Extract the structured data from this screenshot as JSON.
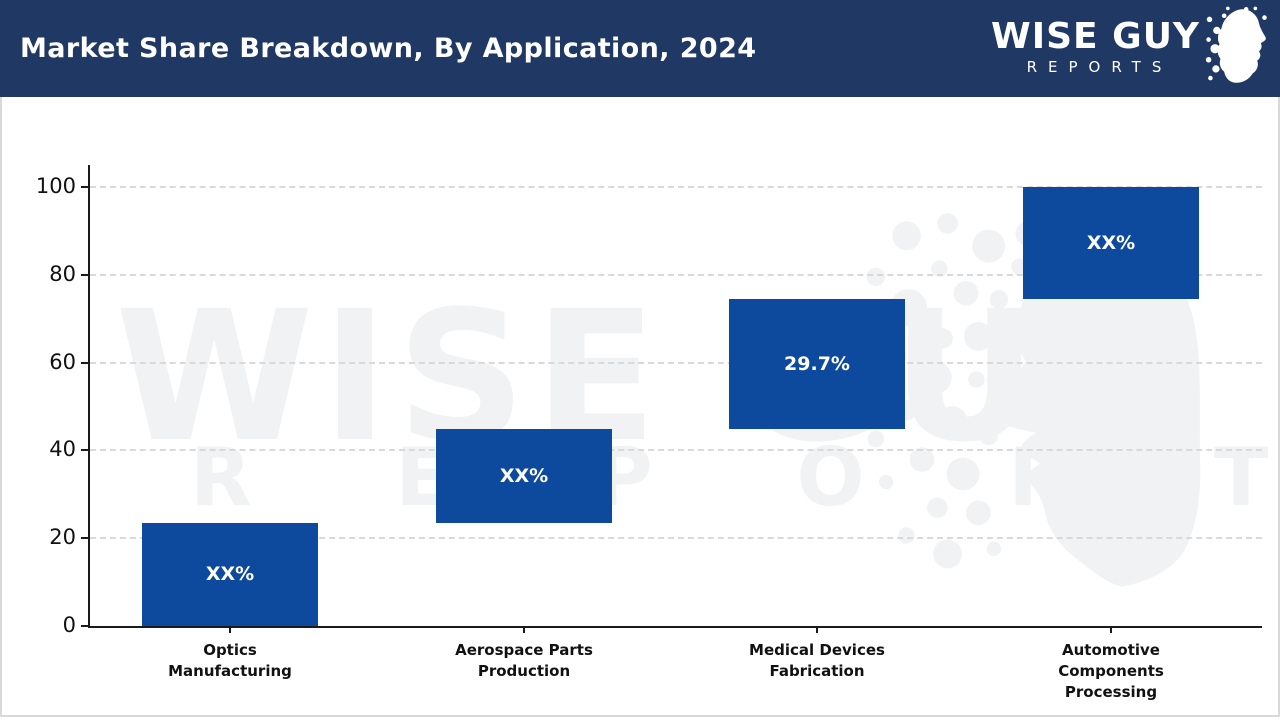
{
  "header": {
    "title": "Market Share Breakdown, By Application, 2024",
    "logo": {
      "primary": "WISE GUY",
      "secondary": "REPORTS"
    }
  },
  "watermark": {
    "primary": "WISE GUY",
    "secondary": "R E P O R T S"
  },
  "chart_data": {
    "type": "bar",
    "subtype": "waterfall",
    "title": "Market Share Breakdown, By Application, 2024",
    "categories": [
      [
        "Optics",
        "Manufacturing"
      ],
      [
        "Aerospace Parts",
        "Production"
      ],
      [
        "Medical Devices",
        "Fabrication"
      ],
      [
        "Automotive",
        "Components",
        "Processing"
      ]
    ],
    "values": [
      23.5,
      21.4,
      29.7,
      25.4
    ],
    "cumulative_ends": [
      23.5,
      44.9,
      74.6,
      100
    ],
    "bar_labels": [
      "XX%",
      "XX%",
      "29.7%",
      "XX%"
    ],
    "xlabel": "",
    "ylabel": "",
    "ylim": [
      0,
      100
    ],
    "yticks": [
      0,
      20,
      40,
      60,
      80,
      100
    ],
    "grid": "horizontal-dashed",
    "legend": "none",
    "bar_color": "#0d4a9e",
    "bar_label_color": "#ffffff"
  },
  "colors": {
    "header_bg": "#1f3864",
    "axis": "#1a1a1a",
    "gridline": "#d9d9d9",
    "watermark": "#f1f2f4",
    "tick_text": "#111111"
  }
}
